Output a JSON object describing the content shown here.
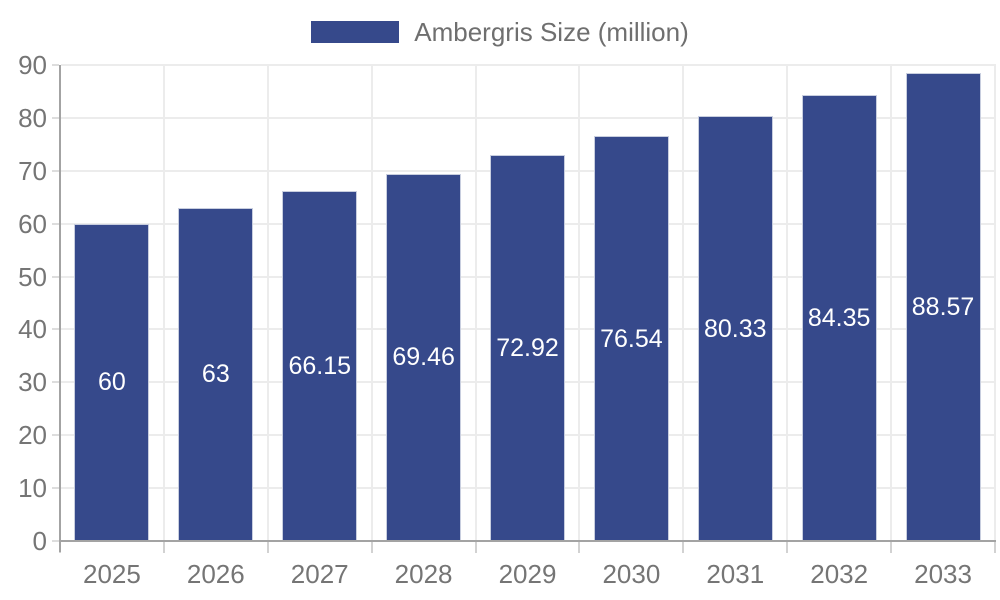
{
  "legend": {
    "label": "Ambergris Size (million)"
  },
  "chart_data": {
    "type": "bar",
    "title": "Ambergris Size (million)",
    "categories": [
      "2025",
      "2026",
      "2027",
      "2028",
      "2029",
      "2030",
      "2031",
      "2032",
      "2033"
    ],
    "values": [
      60,
      63,
      66.15,
      69.46,
      72.92,
      76.54,
      80.33,
      84.35,
      88.57
    ],
    "bar_labels": [
      "60",
      "63",
      "66.15",
      "69.46",
      "72.92",
      "76.54",
      "80.33",
      "84.35",
      "88.57"
    ],
    "series_name": "Ambergris Size (million)",
    "xlabel": "",
    "ylabel": "",
    "ylim": [
      0,
      90
    ],
    "yticks": [
      0,
      10,
      20,
      30,
      40,
      50,
      60,
      70,
      80,
      90
    ],
    "grid": true,
    "legend_position": "top-center",
    "colors": {
      "bar": "#36498b",
      "bar_border": "#c8cedf",
      "bar_label_text": "#ffffff",
      "gridline": "#ececec",
      "axis_line": "#a3a3a3",
      "tick": "#d2d2d2",
      "axis_text": "#757575",
      "legend_text": "#6f6f6f",
      "background": "#ffffff"
    }
  }
}
